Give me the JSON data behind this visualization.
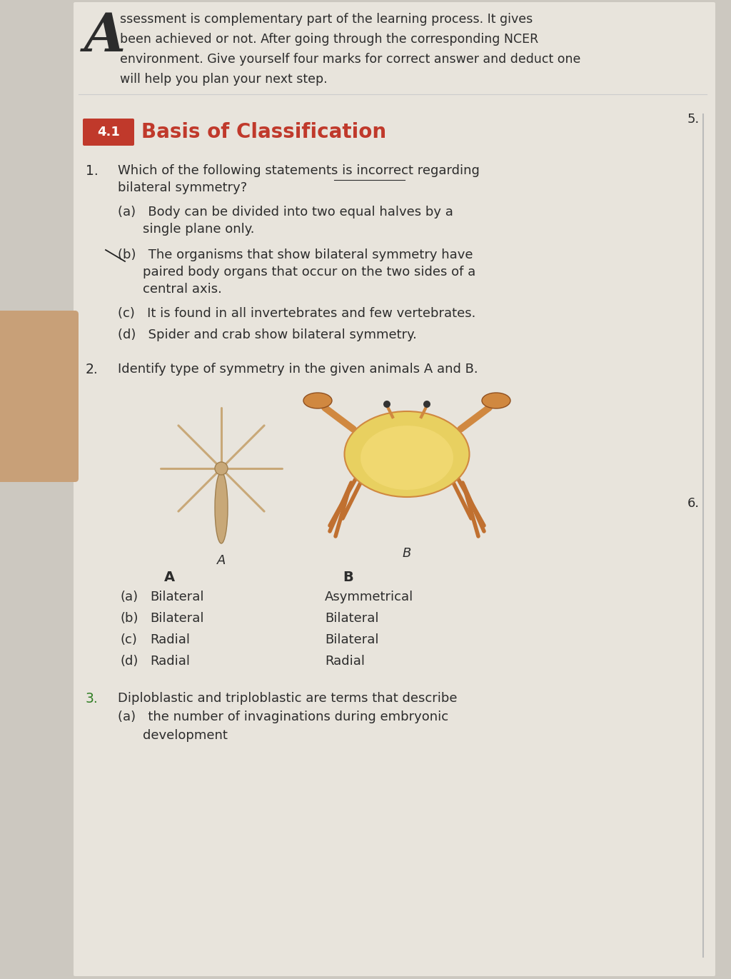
{
  "bg_color": "#ccc8c0",
  "page_bg": "#e8e4dc",
  "intro_text_lines": [
    "ssessment is complementary part of the learning process. It gives",
    "been achieved or not. After going through the corresponding NCER",
    "environment. Give yourself four marks for correct answer and deduct one",
    "will help you plan your next step."
  ],
  "section_badge_color": "#c0392b",
  "section_badge_text": "4.1",
  "section_title": "Basis of Classification",
  "section_title_color": "#c0392b",
  "page_number_5": "5.",
  "page_number_6": "6.",
  "q1_number": "1.",
  "q2_number": "2.",
  "q2_text": "Identify type of symmetry in the given animals A and B.",
  "answer_options": [
    [
      "(a)",
      "Bilateral",
      "Asymmetrical"
    ],
    [
      "(b)",
      "Bilateral",
      "Bilateral"
    ],
    [
      "(c)",
      "Radial",
      "Bilateral"
    ],
    [
      "(d)",
      "Radial",
      "Radial"
    ]
  ],
  "q3_number": "3.",
  "q3_color": "#2e7d22",
  "text_color": "#2c2c2c",
  "anemone_color": "#c8a878",
  "crab_body_color": "#e8d060",
  "crab_shell_color": "#d08840",
  "crab_leg_color": "#c07030"
}
